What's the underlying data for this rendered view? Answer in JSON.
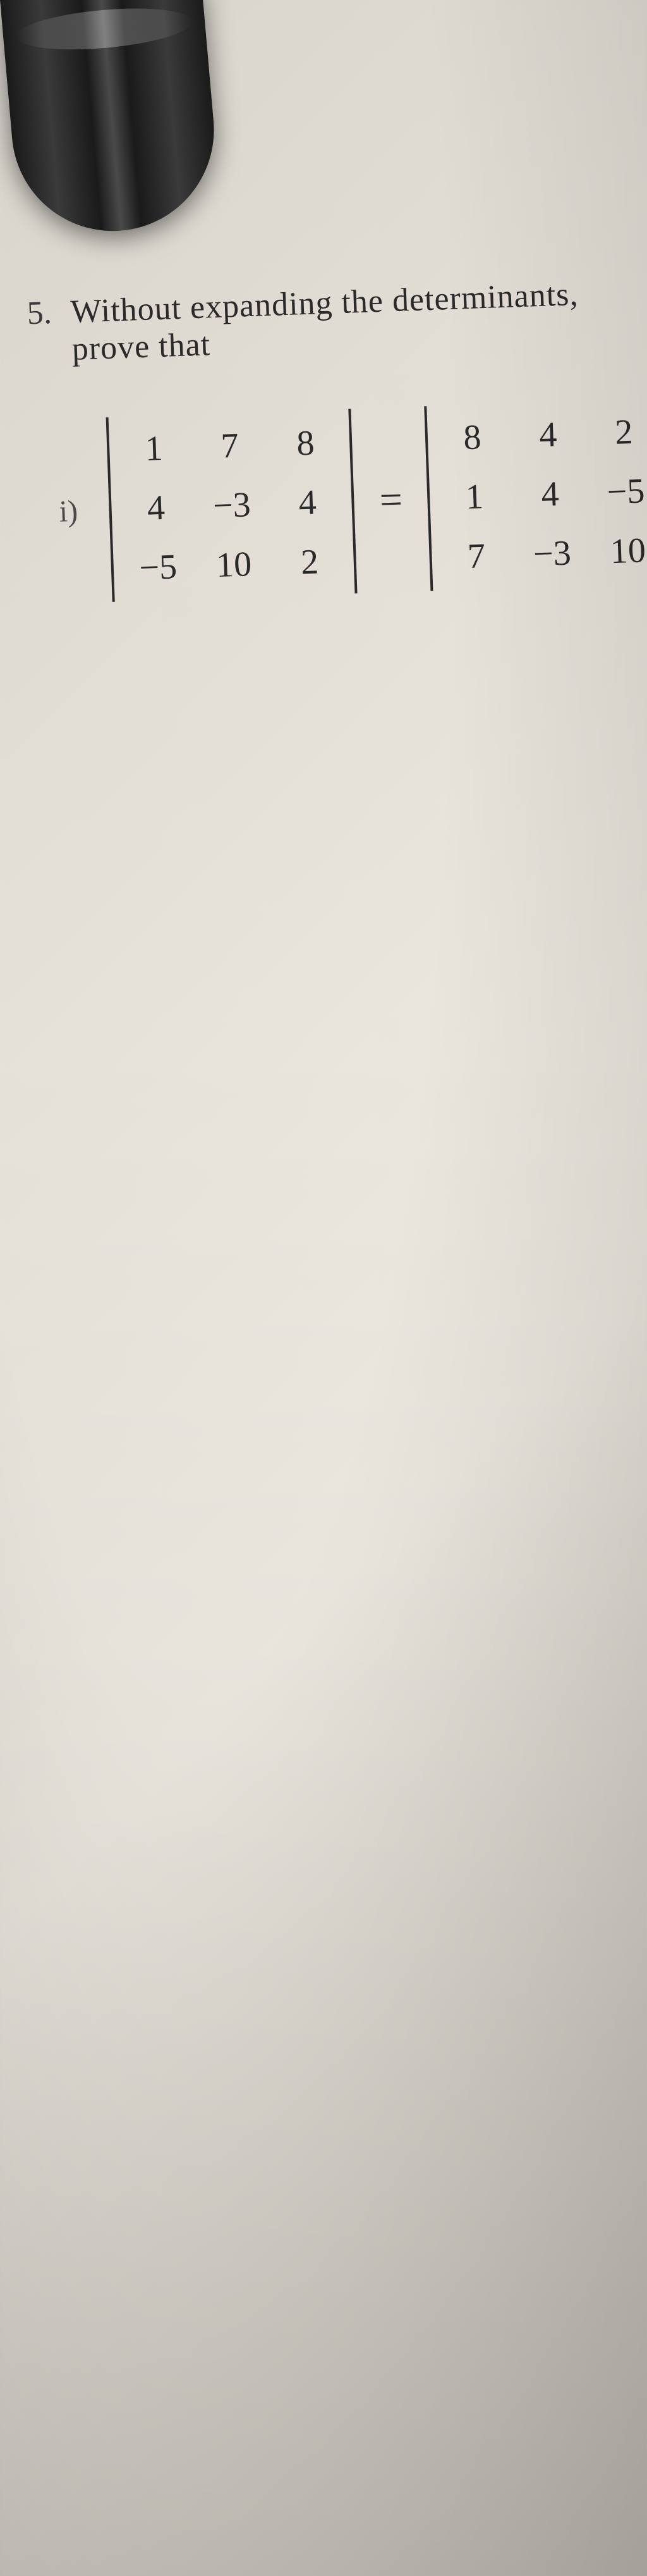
{
  "question": {
    "number": "5.",
    "text": "Without expanding the determinants, prove that",
    "sub_label": "i)"
  },
  "left_matrix": {
    "r1c1": "1",
    "r1c2": "7",
    "r1c3": "8",
    "r2c1": "4",
    "r2c2": "−3",
    "r2c3": "4",
    "r3c1": "−5",
    "r3c2": "10",
    "r3c3": "2"
  },
  "equals_sign": "=",
  "right_matrix": {
    "r1c1": "8",
    "r1c2": "4",
    "r1c3": "2",
    "r2c1": "1",
    "r2c2": "4",
    "r2c3": "−5",
    "r3c1": "7",
    "r3c2": "−3",
    "r3c3": "10"
  },
  "colors": {
    "text": "#2a2a2a",
    "bg_light": "#e8e4dc",
    "bg_dark": "#d0ccc4"
  }
}
